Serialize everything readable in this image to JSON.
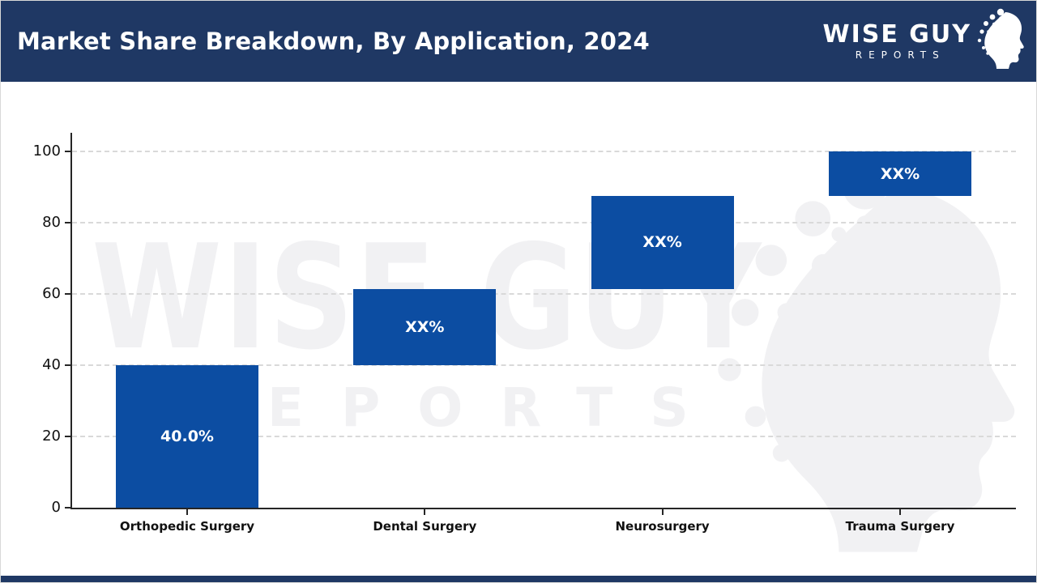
{
  "header": {
    "title": "Market Share Breakdown, By Application, 2024",
    "bg_color": "#1f3864",
    "logo": {
      "line1": "WISE GUY",
      "line2": "REPORTS"
    }
  },
  "watermark": {
    "line1": "WISE GUY",
    "line2": "REPORTS"
  },
  "chart_data": {
    "type": "bar",
    "subtype": "waterfall-stacked-percent",
    "title": "Market Share Breakdown, By Application, 2024",
    "categories": [
      "Orthopedic Surgery",
      "Dental Surgery",
      "Neurosurgery",
      "Trauma Surgery"
    ],
    "segments": [
      {
        "category": "Orthopedic Surgery",
        "start": 0,
        "end": 40,
        "label": "40.0%"
      },
      {
        "category": "Dental Surgery",
        "start": 40,
        "end": 61.4,
        "label": "XX%"
      },
      {
        "category": "Neurosurgery",
        "start": 61.4,
        "end": 87.5,
        "label": "XX%"
      },
      {
        "category": "Trauma Surgery",
        "start": 87.5,
        "end": 100,
        "label": "XX%"
      }
    ],
    "xlabel": "",
    "ylabel": "",
    "ylim": [
      0,
      100
    ],
    "yticks": [
      0,
      20,
      40,
      60,
      80,
      100
    ],
    "grid": "horizontal-dashed",
    "legend": "none",
    "bar_color": "#0c4da2",
    "bar_label_color": "#ffffff",
    "axis_color": "#262626",
    "grid_color": "#d9d9d9",
    "tick_label_color": "#111111"
  },
  "footer": {
    "bg_color": "#1f3864"
  }
}
